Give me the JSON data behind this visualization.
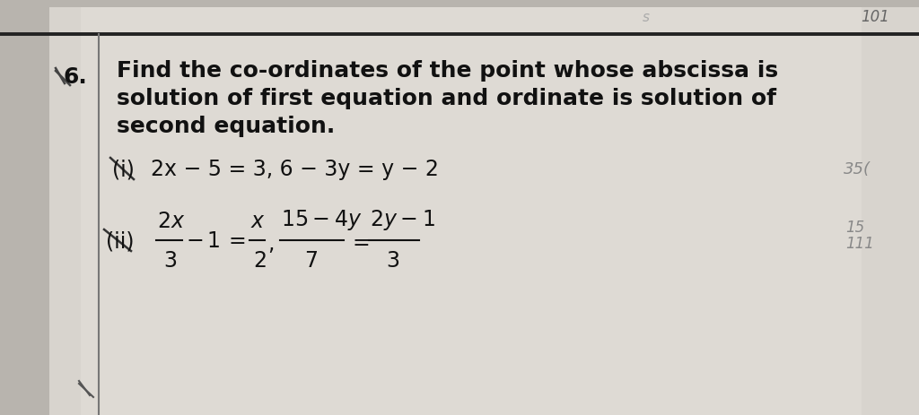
{
  "bg_color": "#b8b4ae",
  "page_color": "#d8d4ce",
  "content_bg": "#dedad4",
  "text_color": "#1a1a1a",
  "dark_text": "#111111",
  "gray_text": "#666666",
  "line_color": "#333333",
  "question_number": "6.",
  "main_line1": "Find the co-ordinates of the point whose abscissa is",
  "main_line2": "solution of first equation and ordinate is solution of",
  "main_line3": "second equation.",
  "part_i_eq": "2x − 5 = 3, 6 − 3y = y − 2",
  "header_num": "101",
  "margin1": "35(",
  "margin2": "15",
  "margin3": "111"
}
